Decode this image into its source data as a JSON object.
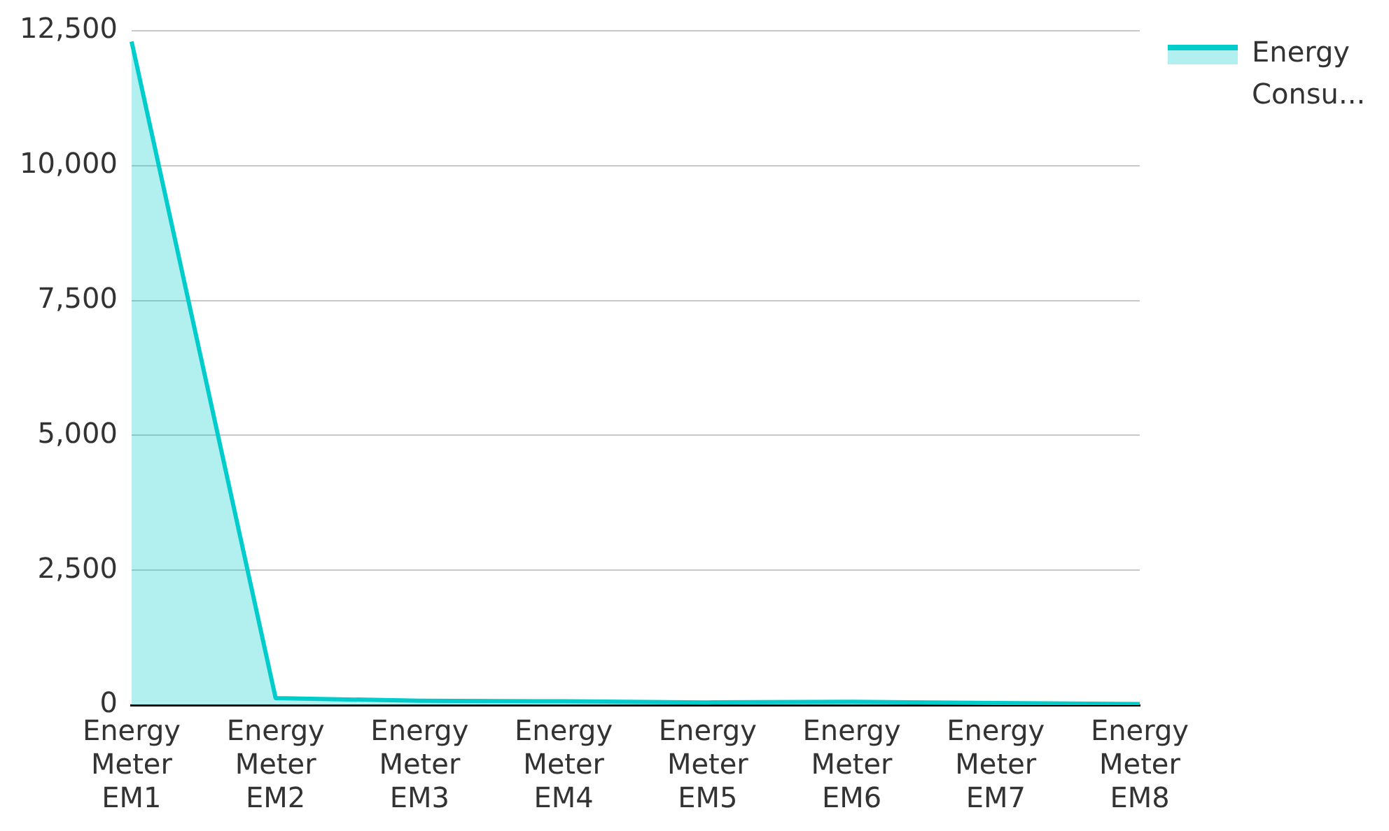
{
  "chart_data": {
    "type": "area",
    "categories": [
      "Energy Meter EM1",
      "Energy Meter EM2",
      "Energy Meter EM3",
      "Energy Meter EM4",
      "Energy Meter EM5",
      "Energy Meter EM6",
      "Energy Meter EM7",
      "Energy Meter EM8"
    ],
    "series": [
      {
        "name": "Energy Consu...",
        "color": "#00cccc",
        "values": [
          12300,
          130,
          80,
          70,
          50,
          60,
          40,
          20
        ]
      }
    ],
    "ylim": [
      0,
      12500
    ],
    "yticks": [
      0,
      {
        "value": 2500,
        "label": "2,500"
      },
      {
        "value": 5000,
        "label": "5,000"
      },
      {
        "value": 7500,
        "label": "7,500"
      },
      {
        "value": 10000,
        "label": "10,000"
      },
      {
        "value": 12500,
        "label": "12,500"
      }
    ],
    "grid": "y",
    "legend": "top right"
  }
}
